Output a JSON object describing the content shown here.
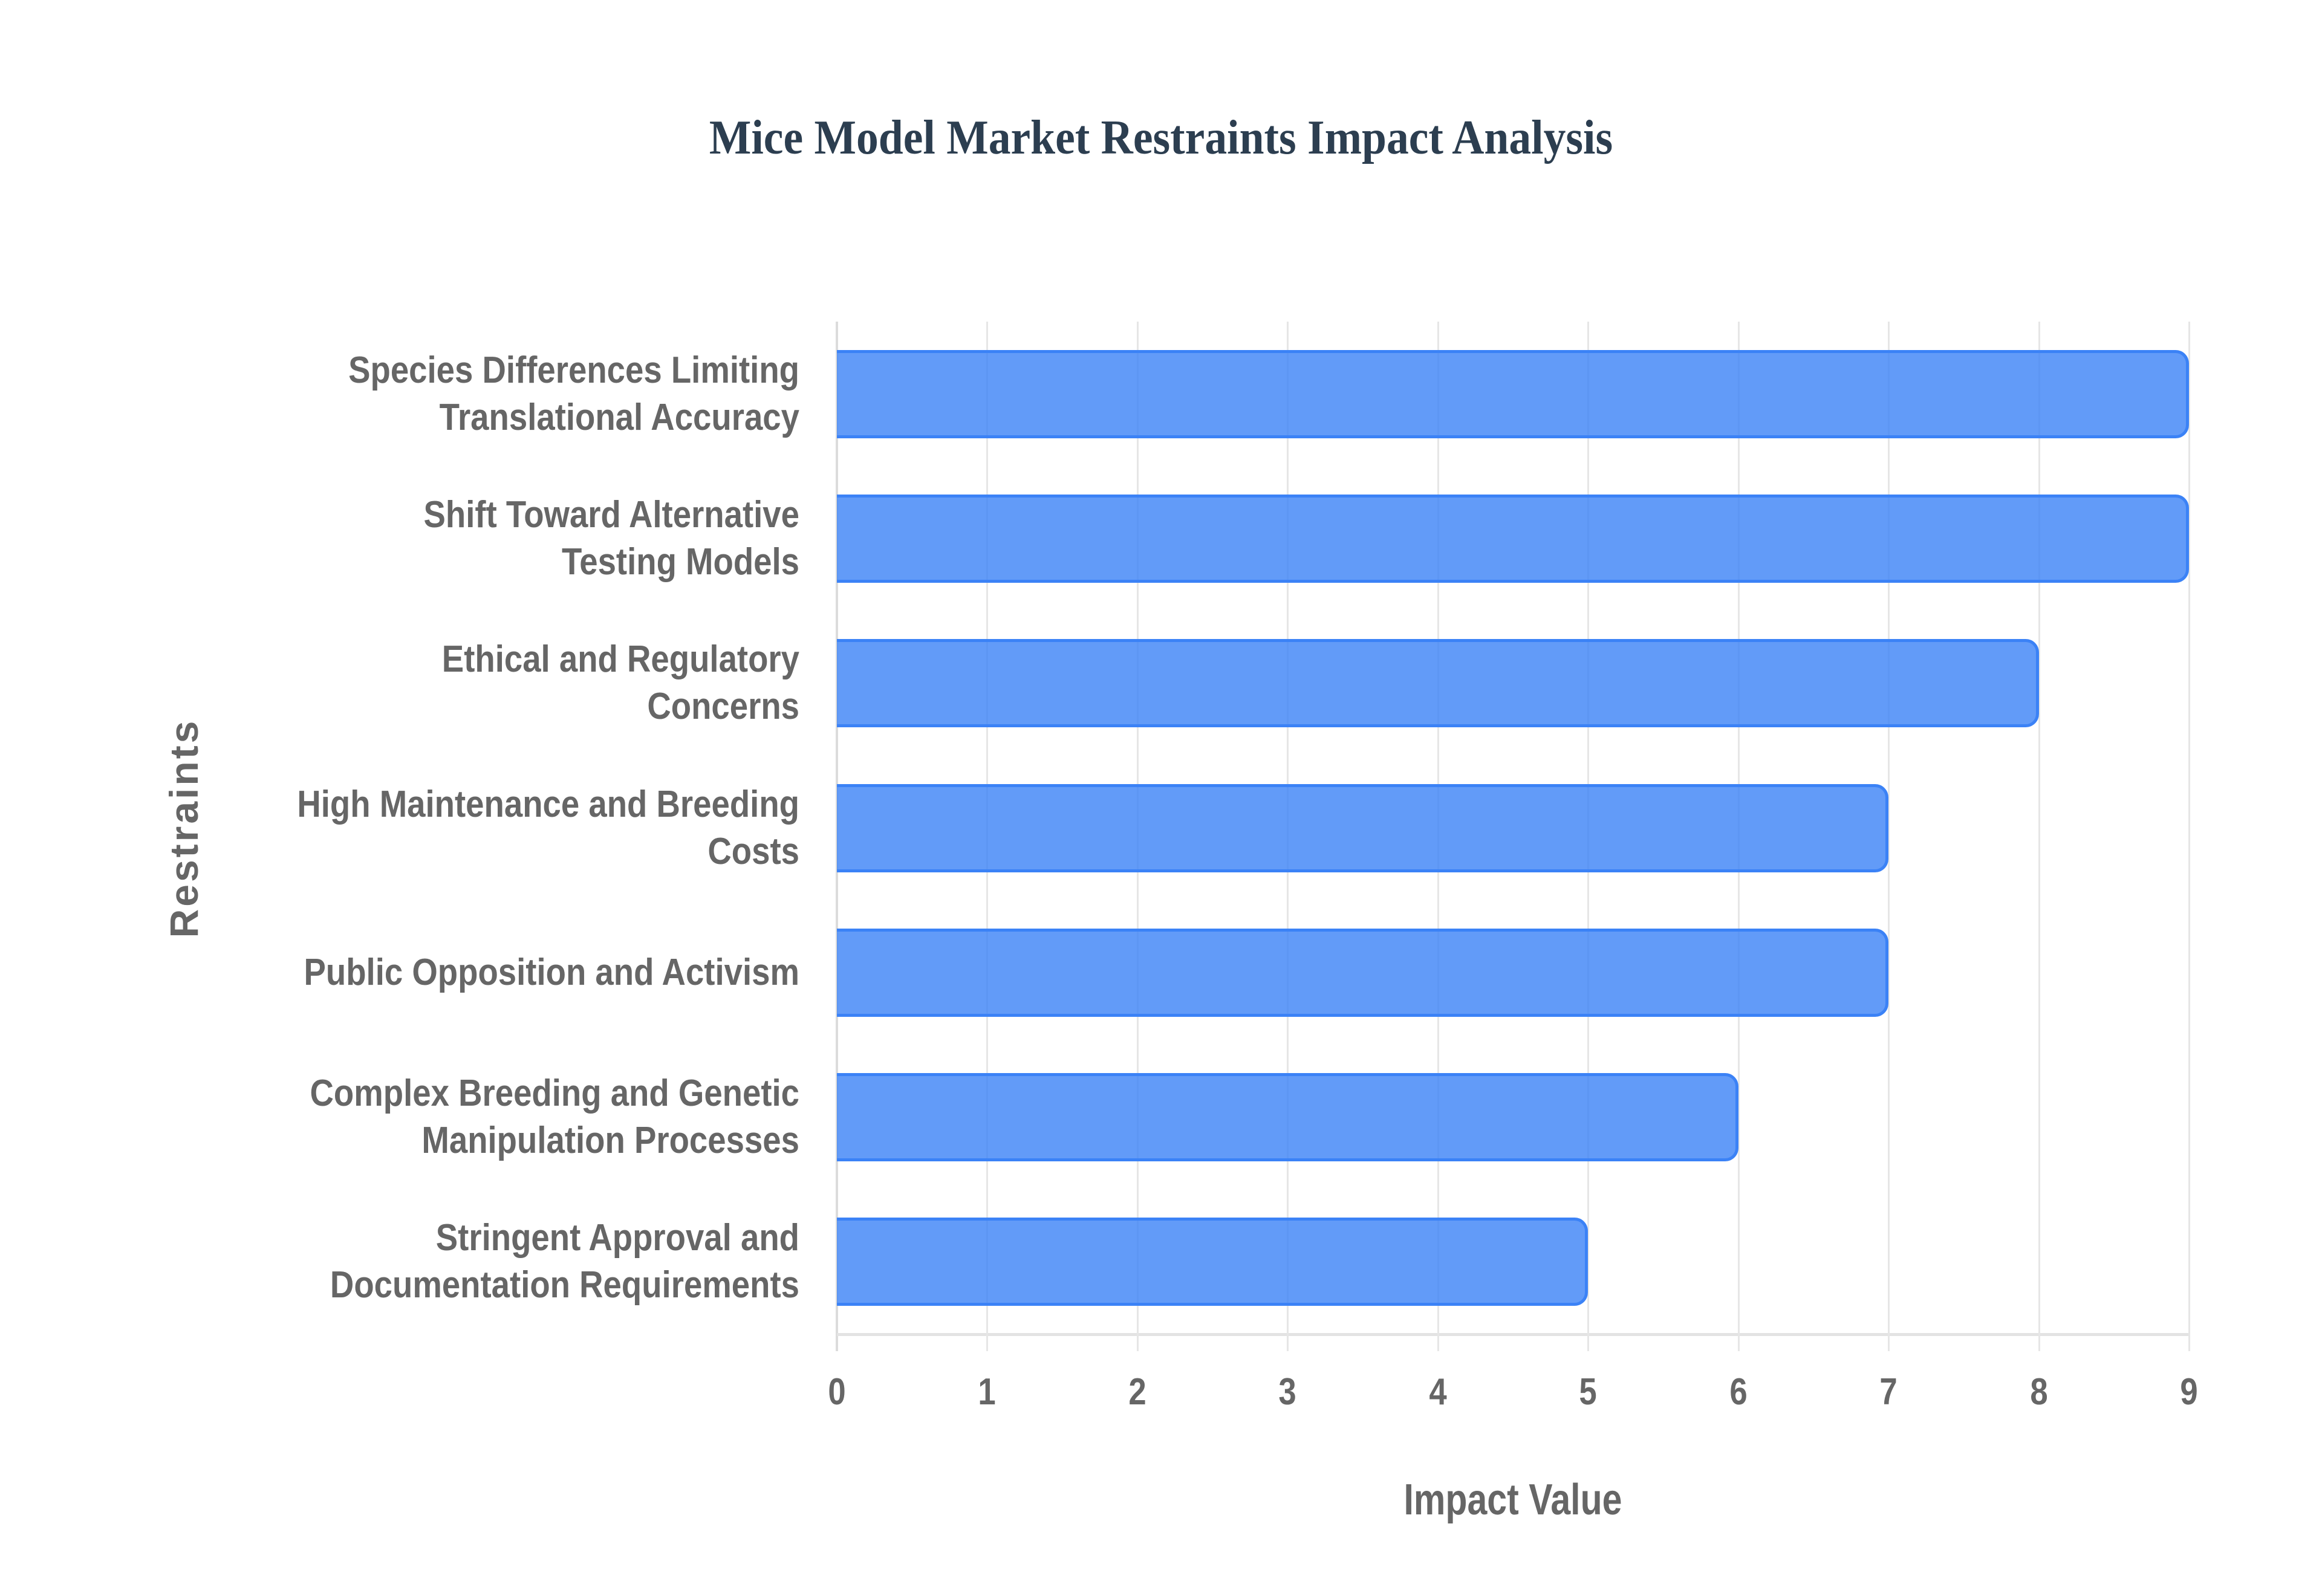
{
  "chart": {
    "title": "Mice Model Market Restraints Impact Analysis",
    "x_axis_title": "Impact Value",
    "y_axis_title": "Restraints",
    "x_ticks": [
      "0",
      "1",
      "2",
      "3",
      "4",
      "5",
      "6",
      "7",
      "8",
      "9"
    ],
    "bars": [
      {
        "label_lines": [
          "Species Differences Limiting",
          "Translational Accuracy"
        ],
        "value": 9
      },
      {
        "label_lines": [
          "Shift Toward Alternative",
          "Testing Models"
        ],
        "value": 9
      },
      {
        "label_lines": [
          "Ethical and Regulatory",
          "Concerns"
        ],
        "value": 8
      },
      {
        "label_lines": [
          "High Maintenance and Breeding",
          "Costs"
        ],
        "value": 7
      },
      {
        "label_lines": [
          "Public Opposition and Activism"
        ],
        "value": 7
      },
      {
        "label_lines": [
          "Complex Breeding and Genetic",
          "Manipulation Processes"
        ],
        "value": 6
      },
      {
        "label_lines": [
          "Stringent Approval and",
          "Documentation Requirements"
        ],
        "value": 5
      }
    ],
    "colors": {
      "bar_fill": "#6199F5",
      "bar_border": "#3B82F6",
      "title": "#2C3E50",
      "axis_text": "#666666",
      "grid": "#E6E6E6",
      "background": "#FFFFFF"
    }
  },
  "chart_data": {
    "type": "bar",
    "orientation": "horizontal",
    "title": "Mice Model Market Restraints Impact Analysis",
    "xlabel": "Impact Value",
    "ylabel": "Restraints",
    "categories": [
      "Species Differences Limiting Translational Accuracy",
      "Shift Toward Alternative Testing Models",
      "Ethical and Regulatory Concerns",
      "High Maintenance and Breeding Costs",
      "Public Opposition and Activism",
      "Complex Breeding and Genetic Manipulation Processes",
      "Stringent Approval and Documentation Requirements"
    ],
    "values": [
      9,
      9,
      8,
      7,
      7,
      6,
      5
    ],
    "xlim": [
      0,
      9
    ],
    "x_ticks": [
      0,
      1,
      2,
      3,
      4,
      5,
      6,
      7,
      8,
      9
    ],
    "grid": {
      "vertical": true,
      "horizontal": false
    },
    "legend": null
  }
}
